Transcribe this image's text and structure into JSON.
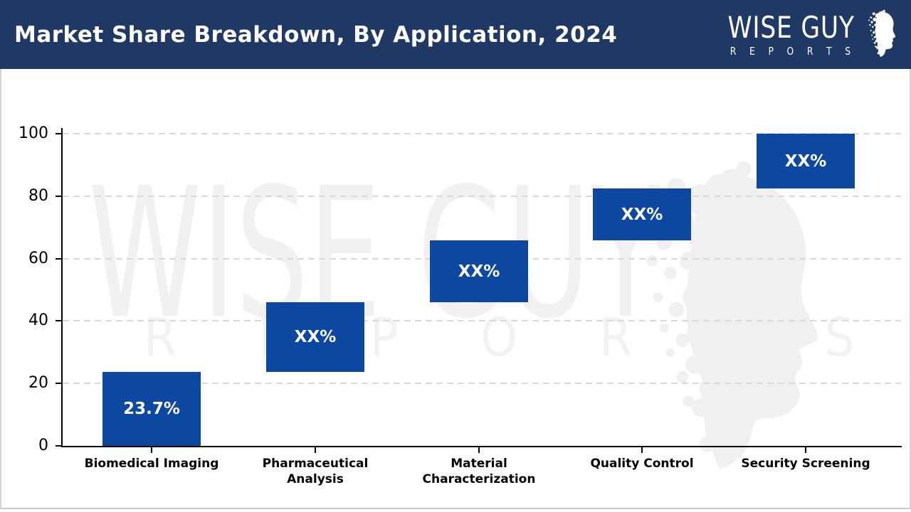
{
  "header": {
    "title": "Market Share Breakdown, By Application, 2024",
    "logo": {
      "brand": "WISE GUY",
      "sub": "R E P O R T S"
    }
  },
  "watermark": {
    "brand": "WISE GUY",
    "sub": "R E P O R T S"
  },
  "colors": {
    "header_bg": "#1f3864",
    "bar": "#0d48a0",
    "bar_label": "#ffffff",
    "grid": "#dadada",
    "axis": "#000000",
    "watermark": "#f1f1f4",
    "card_border": "#cccccc"
  },
  "chart_data": {
    "type": "bar",
    "variant": "waterfall",
    "title": "Market Share Breakdown, By Application, 2024",
    "categories": [
      "Biomedical Imaging",
      "Pharmaceutical Analysis",
      "Material Characterization",
      "Quality Control",
      "Security Screening"
    ],
    "segments": [
      {
        "category": "Biomedical Imaging",
        "start": 0,
        "end": 23.7,
        "label": "23.7%"
      },
      {
        "category": "Pharmaceutical Analysis",
        "start": 23.7,
        "end": 46,
        "label": "XX%"
      },
      {
        "category": "Material Characterization",
        "start": 46,
        "end": 65.8,
        "label": "XX%"
      },
      {
        "category": "Quality Control",
        "start": 65.8,
        "end": 82.4,
        "label": "XX%"
      },
      {
        "category": "Security Screening",
        "start": 82.4,
        "end": 100,
        "label": "XX%"
      }
    ],
    "yticks": [
      0,
      20,
      40,
      60,
      80,
      100
    ],
    "ylim": [
      0,
      100
    ],
    "xlabel": "",
    "ylabel": "",
    "grid": "horizontal-dashed",
    "legend": false,
    "bar_color": "#0d48a0",
    "bar_label_color": "#ffffff"
  }
}
